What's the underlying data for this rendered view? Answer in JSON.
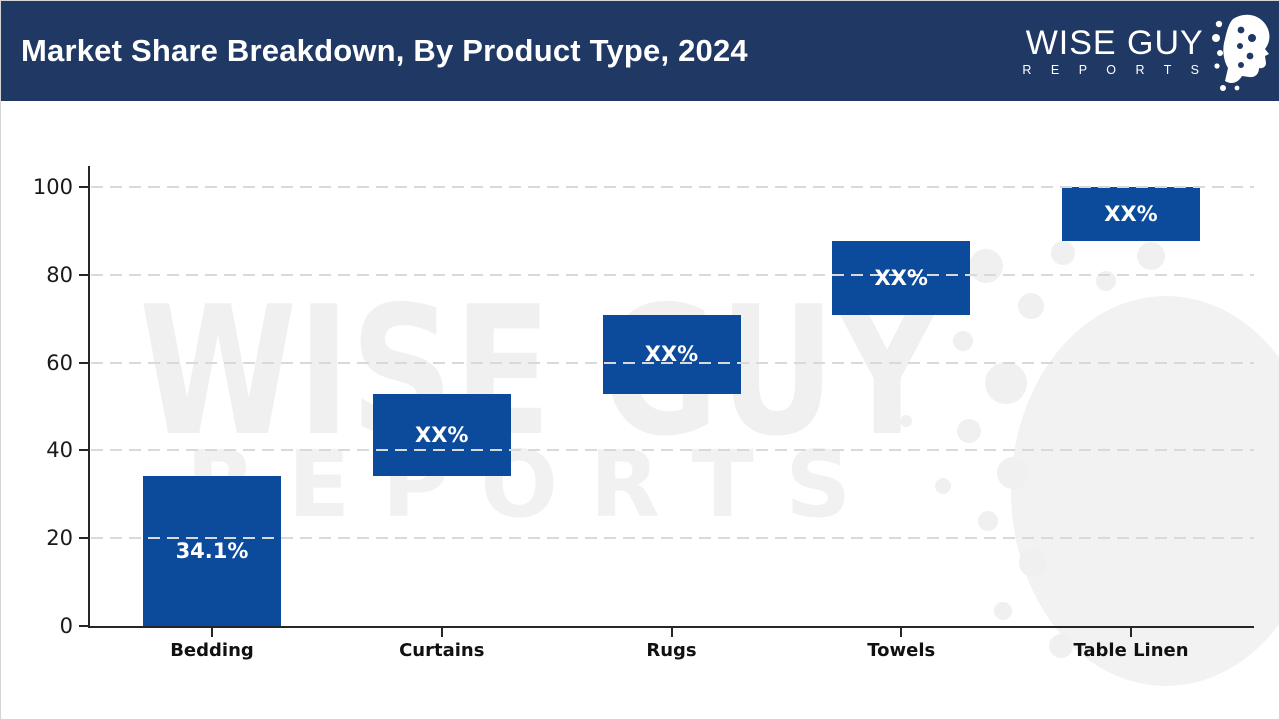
{
  "header": {
    "title": "Market Share Breakdown, By Product Type, 2024",
    "logo": {
      "line1": "WISE GUY",
      "line2": "R E P O R T S"
    }
  },
  "watermark": {
    "line1": "WISE GUY",
    "line2": "R E P O R T S"
  },
  "colors": {
    "header_bg": "#203864",
    "bar": "#0c4a9c",
    "grid": "#d9d9d9",
    "axis": "#262626",
    "value_label_text": "#ffffff",
    "watermark_gray": "#f0f0f0"
  },
  "chart_data": {
    "type": "bar",
    "subtype": "waterfall",
    "title": "Market Share Breakdown, By Product Type, 2024",
    "categories": [
      "Bedding",
      "Curtains",
      "Rugs",
      "Towels",
      "Table Linen"
    ],
    "bars": [
      {
        "category": "Bedding",
        "start": 0,
        "end": 34.1,
        "label": "34.1%"
      },
      {
        "category": "Curtains",
        "start": 34.1,
        "end": 52.9,
        "label": "XX%"
      },
      {
        "category": "Rugs",
        "start": 52.9,
        "end": 70.9,
        "label": "XX%"
      },
      {
        "category": "Towels",
        "start": 70.9,
        "end": 87.7,
        "label": "XX%"
      },
      {
        "category": "Table Linen",
        "start": 87.7,
        "end": 100,
        "label": "XX%"
      }
    ],
    "xlabel": "",
    "ylabel": "",
    "ylim": [
      0,
      100
    ],
    "yticks": [
      0,
      20,
      40,
      60,
      80,
      100
    ],
    "grid": "horizontal-dashed",
    "legend": "none",
    "bar_color": "#0c4a9c"
  }
}
